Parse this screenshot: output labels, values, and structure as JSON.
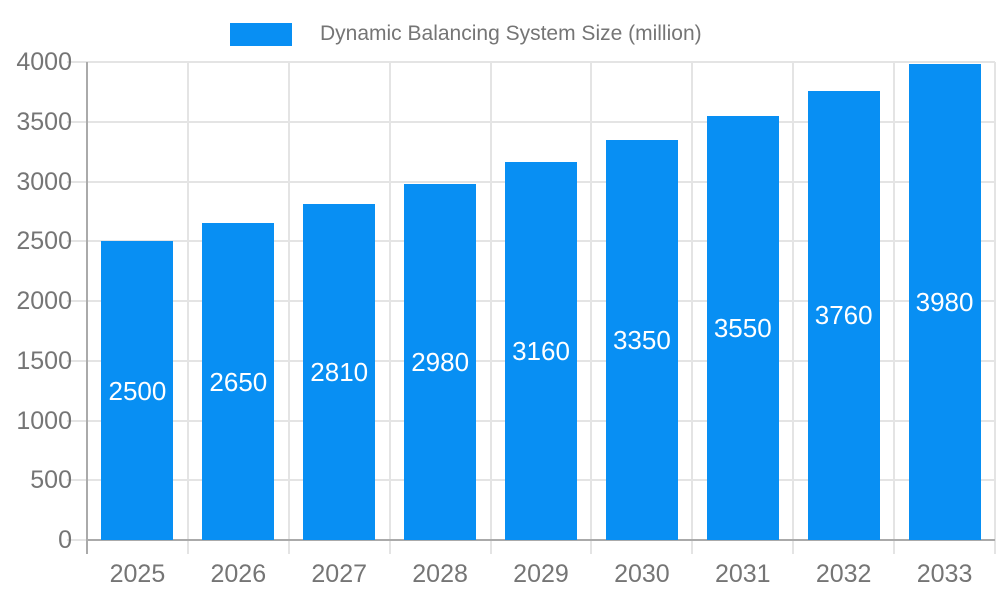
{
  "legend": {
    "position": "top",
    "items": [
      {
        "label": "Dynamic Balancing System Size (million)",
        "color": "#088ff3"
      }
    ]
  },
  "chart_data": {
    "type": "bar",
    "title": "Dynamic Balancing System Size (million)",
    "categories": [
      "2025",
      "2026",
      "2027",
      "2028",
      "2029",
      "2030",
      "2031",
      "2032",
      "2033"
    ],
    "series": [
      {
        "name": "Dynamic Balancing System Size (million)",
        "color": "#088ff3",
        "values": [
          2500,
          2650,
          2810,
          2980,
          3160,
          3350,
          3550,
          3760,
          3980
        ]
      }
    ],
    "data_labels": {
      "show": true,
      "position": "inside-center",
      "color": "#ffffff"
    },
    "xlabel": "",
    "ylabel": "",
    "ylim": [
      0,
      4000
    ],
    "yticks": [
      0,
      500,
      1000,
      1500,
      2000,
      2500,
      3000,
      3500,
      4000
    ],
    "grid": {
      "horizontal": true,
      "vertical": true,
      "color": "#e4e4e4"
    },
    "axis": {
      "line_color": "#aaaaaa",
      "text_color": "#757575"
    },
    "background": "#ffffff",
    "legend_position": "top"
  }
}
